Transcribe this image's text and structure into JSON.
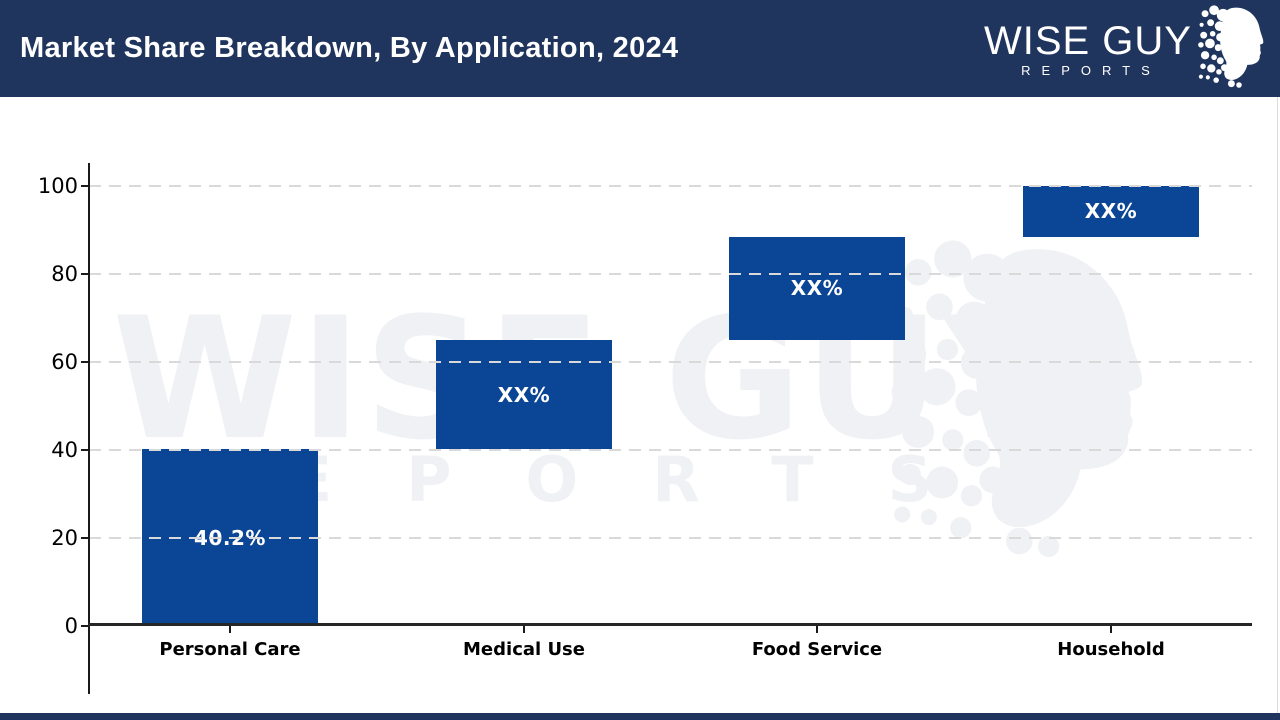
{
  "header": {
    "title": "Market Share Breakdown, By Application, 2024",
    "logo": {
      "line1": "WISE GUY",
      "line2": "REPORTS"
    }
  },
  "watermark": {
    "line1": "WISE GUY",
    "line2": "REPORTS"
  },
  "chart_data": {
    "type": "bar",
    "subtype": "waterfall",
    "title": "Market Share Breakdown, By Application, 2024",
    "categories": [
      "Personal Care",
      "Medical Use",
      "Food Service",
      "Household"
    ],
    "segments": [
      {
        "category": "Personal Care",
        "start": 0,
        "end": 40.2,
        "label": "40.2%"
      },
      {
        "category": "Medical Use",
        "start": 40.2,
        "end": 65,
        "label": "XX%"
      },
      {
        "category": "Food Service",
        "start": 65,
        "end": 88.5,
        "label": "XX%"
      },
      {
        "category": "Household",
        "start": 88.5,
        "end": 100,
        "label": "XX%"
      }
    ],
    "yticks": [
      0,
      20,
      40,
      60,
      80,
      100
    ],
    "ylim": [
      0,
      105
    ],
    "xlabel": "",
    "ylabel": "",
    "grid": "dashed-horizontal",
    "legend": "none",
    "bar_color": "#0b4596"
  },
  "colors": {
    "header_bg": "#20355e",
    "footer_bg": "#20355e",
    "bar": "#0b4596",
    "grid": "#d9d9d9",
    "axis": "#262626",
    "watermark": "#f0f1f4",
    "title_text": "#ffffff",
    "bar_label_text": "#ffffff"
  }
}
